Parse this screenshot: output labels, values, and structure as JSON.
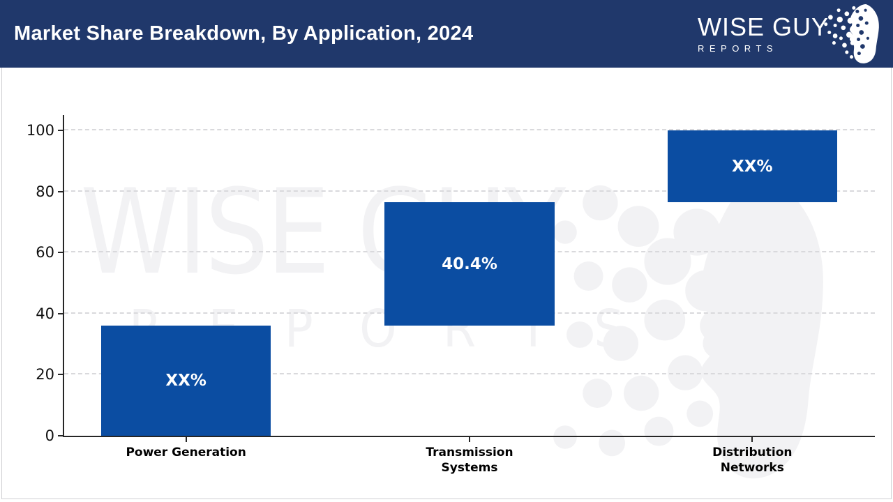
{
  "header": {
    "title": "Market Share Breakdown, By Application, 2024",
    "logo": {
      "line1": "WISE GUY",
      "line2": "REPORTS"
    }
  },
  "watermark": {
    "line1": "WISE GUY",
    "line2": "REPORTS"
  },
  "colors": {
    "header_bg": "#20386b",
    "bar": "#0b4da2",
    "bar_label": "#ffffff",
    "gridline": "#d9d9dc",
    "axis": "#262626",
    "watermark": "#f2f2f4"
  },
  "chart_data": {
    "type": "bar",
    "subtype": "waterfall",
    "title": "Market Share Breakdown, By Application, 2024",
    "xlabel": "",
    "ylabel": "",
    "categories": [
      "Power Generation",
      "Transmission\nSystems",
      "Distribution\nNetworks"
    ],
    "segments": [
      {
        "category": "Power Generation",
        "start": 0,
        "end": 36,
        "label": "XX%"
      },
      {
        "category": "Transmission Systems",
        "start": 36,
        "end": 76.4,
        "label": "40.4%"
      },
      {
        "category": "Distribution Networks",
        "start": 76.4,
        "end": 100,
        "label": "XX%"
      }
    ],
    "yticks": [
      0,
      20,
      40,
      60,
      80,
      100
    ],
    "ylim": [
      0,
      105
    ],
    "grid": "dashed-horizontal",
    "legend": "none"
  }
}
